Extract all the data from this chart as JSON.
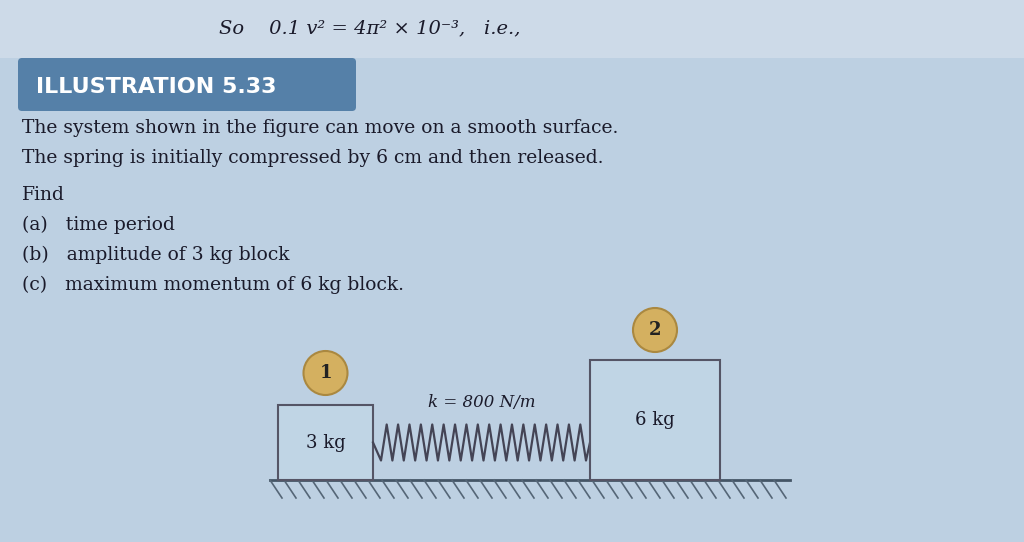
{
  "bg_outer": "#c8d8e8",
  "bg_inner": "#b8ccd8",
  "top_text": "So    0.1 v² = 4π² × 10⁻³,   i.e.,",
  "header_text": "ILLUSTRATION 5.33",
  "header_bg": "#6090b8",
  "header_text_color": "#ffffff",
  "body_lines": [
    "The system shown in the figure can move on a smooth surface.",
    "The spring is initially compressed by 6 cm and then released.",
    "Find",
    "(a)   time period",
    "(b)   amplitude of 3 kg block",
    "(c)   maximum momentum of 6 kg block."
  ],
  "block1_label": "3 kg",
  "block2_label": "6 kg",
  "spring_label": "k = 800 N/m",
  "circle1_label": "1",
  "circle2_label": "2",
  "block_color": "#c0d5e5",
  "block_edge": "#555566",
  "circle_face": "#d4b060",
  "circle_edge": "#aa8840",
  "spring_color": "#444455",
  "ground_color": "#778899",
  "text_color": "#1a1a2a"
}
